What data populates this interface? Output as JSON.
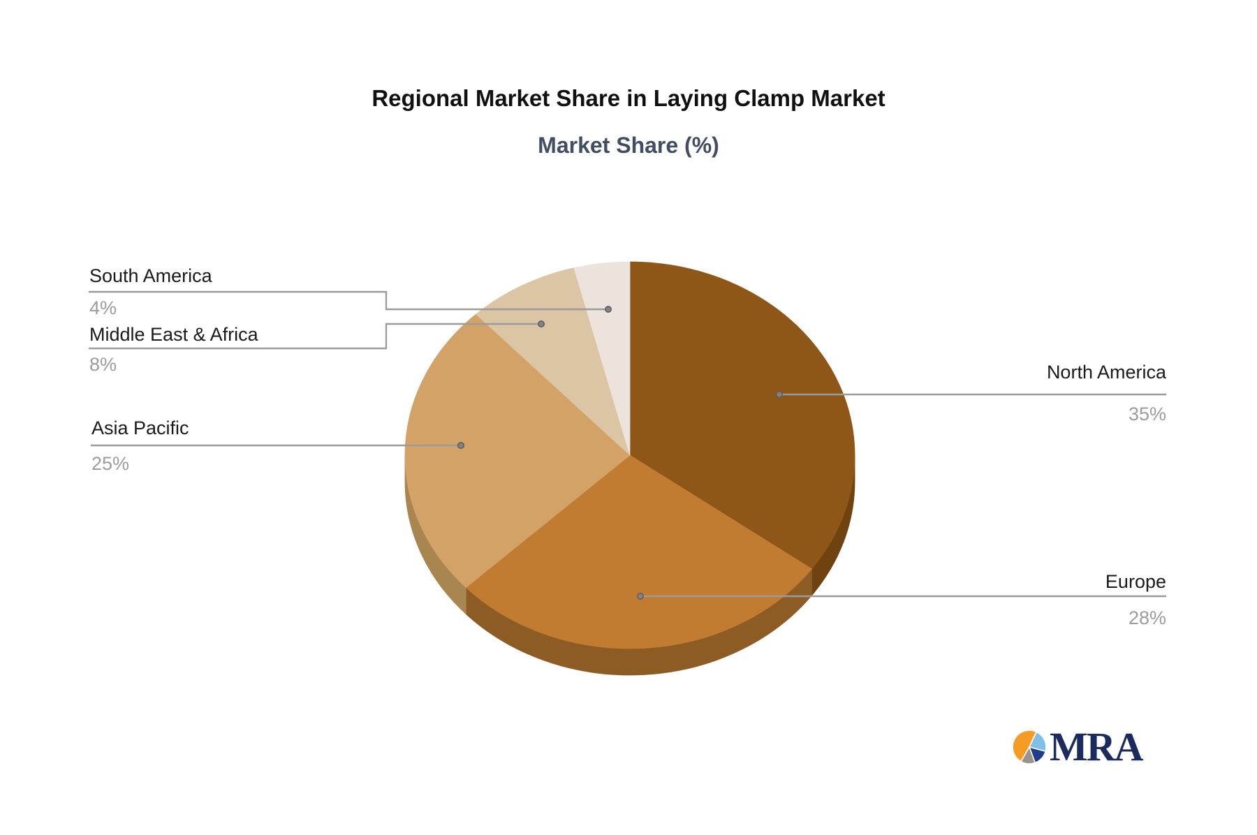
{
  "header": {
    "title": "Regional Market Share in Laying Clamp Market",
    "subtitle": "Market Share (%)"
  },
  "chart_data": {
    "type": "pie",
    "title": "Regional Market Share in Laying Clamp Market",
    "subtitle": "Market Share (%)",
    "unit": "%",
    "effect_3d": true,
    "legend_position": "callout-labels",
    "categories": [
      "North America",
      "Europe",
      "Asia Pacific",
      "Middle East & Africa",
      "South America"
    ],
    "values": [
      35,
      28,
      25,
      8,
      4
    ],
    "slices": [
      {
        "name": "North America",
        "value": 35,
        "value_label": "35%",
        "color": "#8e5617",
        "side_color": "#6e430f"
      },
      {
        "name": "Europe",
        "value": 28,
        "value_label": "28%",
        "color": "#c17c31",
        "side_color": "#8d5c25"
      },
      {
        "name": "Asia Pacific",
        "value": 25,
        "value_label": "25%",
        "color": "#d2a266",
        "side_color": "#a9854f"
      },
      {
        "name": "Middle East & Africa",
        "value": 8,
        "value_label": "8%",
        "color": "#dcc5a4",
        "side_color": "#b5a285"
      },
      {
        "name": "South America",
        "value": 4,
        "value_label": "4%",
        "color": "#ece4dc",
        "side_color": "#c8beb1"
      }
    ],
    "label_style": {
      "name_color": "#1a1a1a",
      "value_color": "#9c9c9c",
      "line_color": "#9b9b9b",
      "dot_color": "#828282"
    }
  },
  "logo": {
    "text": "MRA",
    "text_color": "#1c2b5e",
    "segments": [
      {
        "color": "#f49c23",
        "start": 210,
        "end": 385
      },
      {
        "color": "#7fc0e8",
        "start": 25,
        "end": 105
      },
      {
        "color": "#1f3d8c",
        "start": 105,
        "end": 160
      },
      {
        "color": "#9a948c",
        "start": 160,
        "end": 210
      }
    ]
  }
}
